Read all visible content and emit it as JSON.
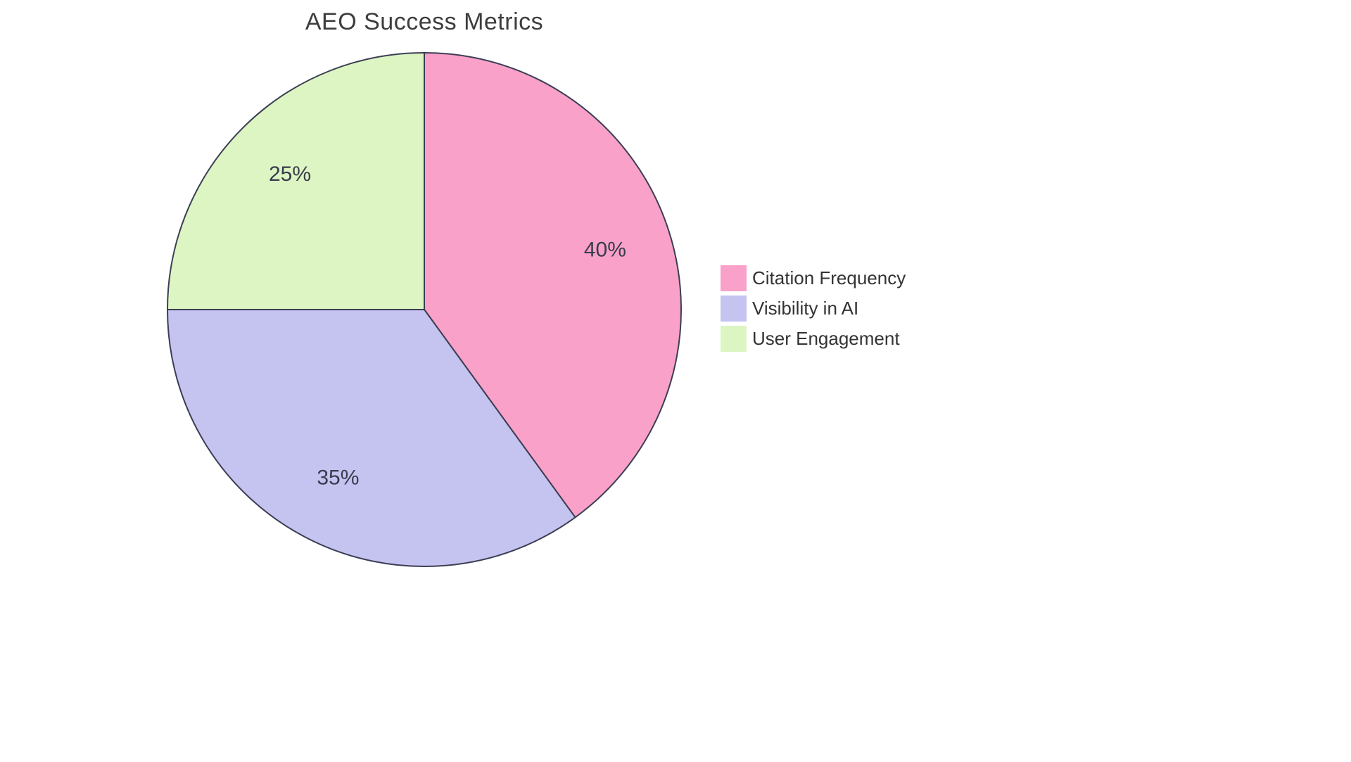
{
  "chart_data": {
    "type": "pie",
    "title": "AEO Success Metrics",
    "slices": [
      {
        "label": "Citation Frequency",
        "value": 40,
        "pct_label": "40%",
        "color": "#F9A1C9"
      },
      {
        "label": "Visibility in AI",
        "value": 35,
        "pct_label": "35%",
        "color": "#C5C3F0"
      },
      {
        "label": "User Engagement",
        "value": 25,
        "pct_label": "25%",
        "color": "#DCF5C2"
      }
    ],
    "start": "top",
    "direction": "clockwise",
    "legend_position": "right",
    "grid": false,
    "stroke_color": "#3B3E54",
    "label_color": "#383B4D",
    "title_color": "#3D3D3D"
  }
}
